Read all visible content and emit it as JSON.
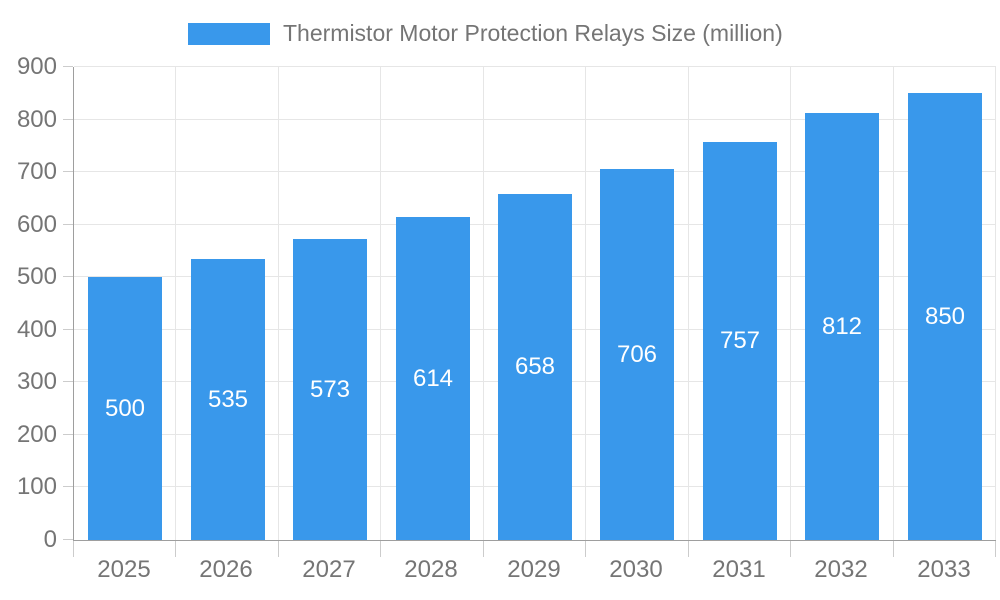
{
  "chart_data": {
    "type": "bar",
    "title": "",
    "legend": {
      "label": "Thermistor Motor Protection Relays Size (million)",
      "position": "top"
    },
    "categories": [
      "2025",
      "2026",
      "2027",
      "2028",
      "2029",
      "2030",
      "2031",
      "2032",
      "2033"
    ],
    "values": [
      500,
      535,
      573,
      614,
      658,
      706,
      757,
      812,
      850
    ],
    "value_labels_shown": true,
    "xlabel": "",
    "ylabel": "",
    "ylim": [
      0,
      900
    ],
    "ytick_step": 100,
    "y_ticks": [
      0,
      100,
      200,
      300,
      400,
      500,
      600,
      700,
      800,
      900
    ],
    "grid": true,
    "colors": {
      "bar": "#3998EB",
      "grid": "#E6E6E6",
      "axis": "#9E9E9E",
      "tick": "#CCCCCC",
      "text": "#757575",
      "value_label": "#FFFFFF",
      "background": "#FFFFFF"
    }
  }
}
